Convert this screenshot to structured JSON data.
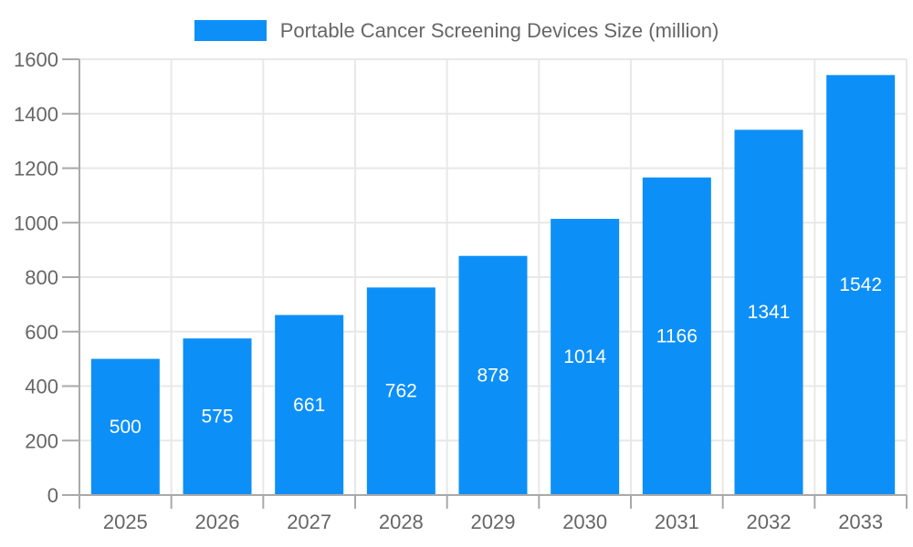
{
  "colors": {
    "bar": "#0D8FF8",
    "grid": "#E8E8E8",
    "axis": "#A9A9A9",
    "tick_text": "#666666",
    "legend_text": "#666666",
    "bar_label_text": "#FFFFFF",
    "background": "#FFFFFF"
  },
  "legend": {
    "position": "top-center",
    "marker": "blue-rectangle"
  },
  "chart_data": {
    "type": "bar",
    "title": "Portable Cancer Screening Devices Size (million)",
    "categories": [
      "2025",
      "2026",
      "2027",
      "2028",
      "2029",
      "2030",
      "2031",
      "2032",
      "2033"
    ],
    "series": [
      {
        "name": "Portable Cancer Screening Devices Size (million)",
        "values": [
          500,
          575,
          661,
          762,
          878,
          1014,
          1166,
          1341,
          1542
        ]
      }
    ],
    "value_labels": [
      "500",
      "575",
      "661",
      "762",
      "878",
      "1014",
      "1166",
      "1341",
      "1542"
    ],
    "value_label_position": "inside-center",
    "xlabel": "",
    "ylabel": "",
    "ylim": [
      0,
      1600
    ],
    "y_ticks": [
      0,
      200,
      400,
      600,
      800,
      1000,
      1200,
      1400,
      1600
    ],
    "y_tick_labels": [
      "0",
      "200",
      "400",
      "600",
      "800",
      "1000",
      "1200",
      "1400",
      "1600"
    ],
    "grid": true,
    "grid_vertical": true,
    "legend_position": "top-center"
  }
}
